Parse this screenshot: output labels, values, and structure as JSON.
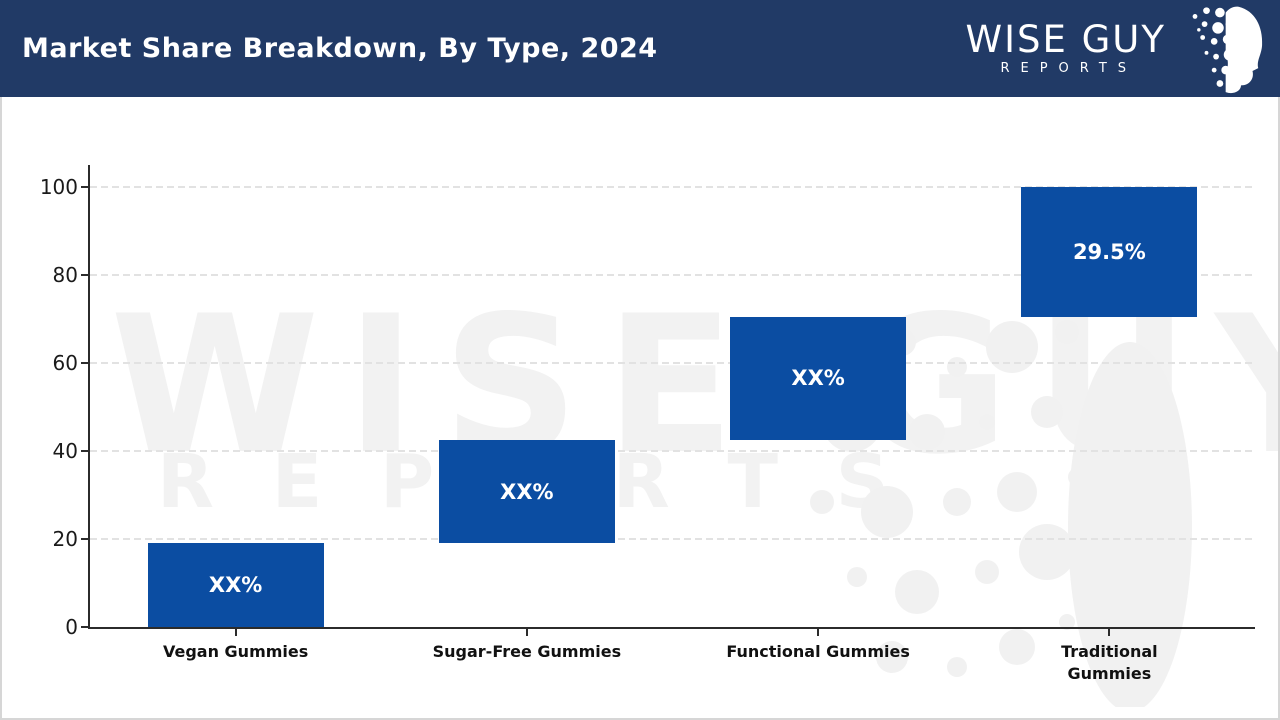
{
  "header": {
    "title": "Market Share Breakdown, By Type, 2024",
    "logo": {
      "line1": "WISE GUY",
      "line2": "REPORTS"
    }
  },
  "watermark": {
    "line1": "WISE GUY",
    "line2": "R E P O R T S"
  },
  "colors": {
    "header_bg": "#213a66",
    "bar": "#0b4da2",
    "bar_label": "#ffffff",
    "axis": "#2b2b2b",
    "grid": "#e2e2e2",
    "watermark": "#f2f2f2",
    "category_label": "#111111",
    "border": "#d6d6d6"
  },
  "chart_data": {
    "type": "bar",
    "subtype": "waterfall",
    "title": "Market Share Breakdown, By Type, 2024",
    "categories": [
      "Vegan Gummies",
      "Sugar-Free Gummies",
      "Functional Gummies",
      "Traditional\nGummies"
    ],
    "segments": [
      {
        "category": "Vegan Gummies",
        "start": 0,
        "end": 19,
        "label": "XX%"
      },
      {
        "category": "Sugar-Free Gummies",
        "start": 19,
        "end": 42.5,
        "label": "XX%"
      },
      {
        "category": "Functional Gummies",
        "start": 42.5,
        "end": 70.5,
        "label": "XX%"
      },
      {
        "category": "Traditional Gummies",
        "start": 70.5,
        "end": 100,
        "label": "29.5%"
      }
    ],
    "ylim": [
      0,
      105
    ],
    "yticks": [
      0,
      20,
      40,
      60,
      80,
      100
    ],
    "xlabel": "",
    "ylabel": "",
    "grid": "horizontal dashed",
    "legend": "none"
  }
}
